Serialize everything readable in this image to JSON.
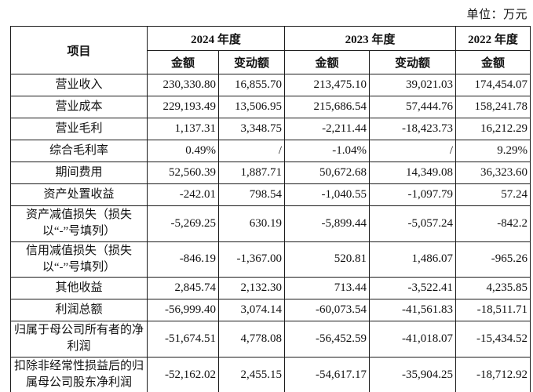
{
  "unit_label": "单位：万元",
  "table": {
    "columns": {
      "item": "项目",
      "year_2024": "2024 年度",
      "year_2023": "2023 年度",
      "year_2022": "2022 年度",
      "amount": "金额",
      "change": "变动额"
    },
    "rows": [
      {
        "label": "营业收入",
        "amount_2024": "230,330.80",
        "change_2024": "16,855.70",
        "amount_2023": "213,475.10",
        "change_2023": "39,021.03",
        "amount_2022": "174,454.07"
      },
      {
        "label": "营业成本",
        "amount_2024": "229,193.49",
        "change_2024": "13,506.95",
        "amount_2023": "215,686.54",
        "change_2023": "57,444.76",
        "amount_2022": "158,241.78"
      },
      {
        "label": "营业毛利",
        "amount_2024": "1,137.31",
        "change_2024": "3,348.75",
        "amount_2023": "-2,211.44",
        "change_2023": "-18,423.73",
        "amount_2022": "16,212.29"
      },
      {
        "label": "综合毛利率",
        "amount_2024": "0.49%",
        "change_2024": "/",
        "amount_2023": "-1.04%",
        "change_2023": "/",
        "amount_2022": "9.29%"
      },
      {
        "label": "期间费用",
        "amount_2024": "52,560.39",
        "change_2024": "1,887.71",
        "amount_2023": "50,672.68",
        "change_2023": "14,349.08",
        "amount_2022": "36,323.60"
      },
      {
        "label": "资产处置收益",
        "amount_2024": "-242.01",
        "change_2024": "798.54",
        "amount_2023": "-1,040.55",
        "change_2023": "-1,097.79",
        "amount_2022": "57.24"
      },
      {
        "label": "资产减值损失（损失以“-”号填列）",
        "amount_2024": "-5,269.25",
        "change_2024": "630.19",
        "amount_2023": "-5,899.44",
        "change_2023": "-5,057.24",
        "amount_2022": "-842.2"
      },
      {
        "label": "信用减值损失（损失以“-”号填列）",
        "amount_2024": "-846.19",
        "change_2024": "-1,367.00",
        "amount_2023": "520.81",
        "change_2023": "1,486.07",
        "amount_2022": "-965.26"
      },
      {
        "label": "其他收益",
        "amount_2024": "2,845.74",
        "change_2024": "2,132.30",
        "amount_2023": "713.44",
        "change_2023": "-3,522.41",
        "amount_2022": "4,235.85"
      },
      {
        "label": "利润总额",
        "amount_2024": "-56,999.40",
        "change_2024": "3,074.14",
        "amount_2023": "-60,073.54",
        "change_2023": "-41,561.83",
        "amount_2022": "-18,511.71"
      },
      {
        "label": "归属于母公司所有者的净利润",
        "amount_2024": "-51,674.51",
        "change_2024": "4,778.08",
        "amount_2023": "-56,452.59",
        "change_2023": "-41,018.07",
        "amount_2022": "-15,434.52"
      },
      {
        "label": "扣除非经常性损益后的归属母公司股东净利润",
        "amount_2024": "-52,162.02",
        "change_2024": "2,455.15",
        "amount_2023": "-54,617.17",
        "change_2023": "-35,904.25",
        "amount_2022": "-18,712.92"
      }
    ]
  }
}
